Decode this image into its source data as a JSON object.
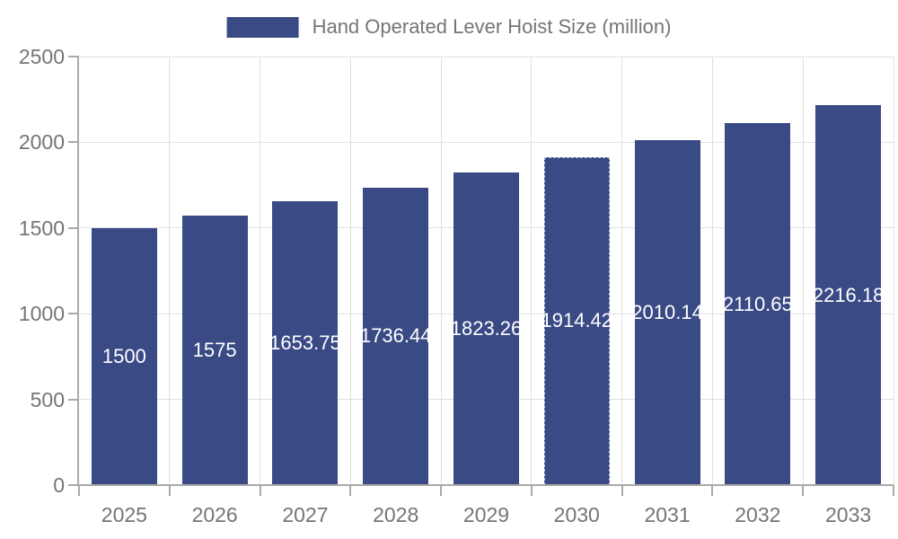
{
  "legend": {
    "label": "Hand Operated Lever Hoist Size (million)"
  },
  "chart_data": {
    "type": "bar",
    "title": "",
    "categories": [
      "2025",
      "2026",
      "2027",
      "2028",
      "2029",
      "2030",
      "2031",
      "2032",
      "2033"
    ],
    "series": [
      {
        "name": "Hand Operated Lever Hoist Size (million)",
        "values": [
          1500,
          1575,
          1653.75,
          1736.44,
          1823.26,
          1914.42,
          2010.14,
          2110.65,
          2216.18
        ]
      }
    ],
    "data_labels": [
      "1500",
      "1575",
      "1653.75",
      "1736.44",
      "1823.26",
      "1914.42",
      "2010.14",
      "2110.65",
      "2216.18"
    ],
    "xlabel": "",
    "ylabel": "",
    "ylim": [
      0,
      2500
    ],
    "yticks": [
      0,
      500,
      1000,
      1500,
      2000,
      2500
    ],
    "grid": true,
    "legend_position": "top-center",
    "highlighted_category": "2030",
    "colors": {
      "bar": "#3A4A85",
      "grid": "#E0E0E0",
      "axis": "#A9A9A9",
      "tick_text": "#757575",
      "data_label": "#FFFFFF",
      "highlight_border": "#B9C0DA"
    }
  }
}
